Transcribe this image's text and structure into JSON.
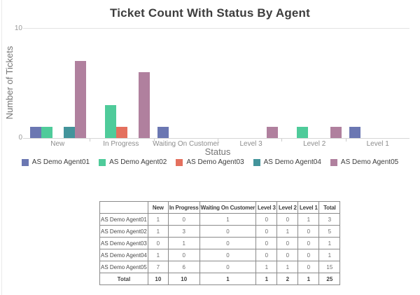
{
  "title": "Ticket Count With Status By Agent",
  "chart_data": {
    "type": "bar",
    "title": "Ticket Count With Status By Agent",
    "xlabel": "Status",
    "ylabel": "Number of Tickets",
    "ylim": [
      0,
      10
    ],
    "yticks": [
      0,
      10
    ],
    "grid": "horizontal-top-and-baseline-only",
    "legend_position": "bottom",
    "categories": [
      "New",
      "In Progress",
      "Waiting On Customer",
      "Level 3",
      "Level 2",
      "Level 1"
    ],
    "series": [
      {
        "name": "AS Demo Agent01",
        "color": "#6b77b2",
        "values": [
          1,
          0,
          1,
          0,
          0,
          1
        ]
      },
      {
        "name": "AS Demo Agent02",
        "color": "#4fcb9a",
        "values": [
          1,
          3,
          0,
          0,
          1,
          0
        ]
      },
      {
        "name": "AS Demo Agent03",
        "color": "#e4705e",
        "values": [
          0,
          1,
          0,
          0,
          0,
          0
        ]
      },
      {
        "name": "AS Demo Agent04",
        "color": "#43949b",
        "values": [
          1,
          0,
          0,
          0,
          0,
          0
        ]
      },
      {
        "name": "AS Demo Agent05",
        "color": "#b0809e",
        "values": [
          7,
          6,
          0,
          1,
          1,
          0
        ]
      }
    ]
  },
  "table": {
    "columns": [
      "",
      "New",
      "In Progress",
      "Waiting On Customer",
      "Level 3",
      "Level 2",
      "Level 1",
      "Total"
    ],
    "rows": [
      {
        "label": "AS Demo Agent01",
        "values": [
          1,
          0,
          1,
          0,
          0,
          1,
          3
        ],
        "bold": false
      },
      {
        "label": "AS Demo Agent02",
        "values": [
          1,
          3,
          0,
          0,
          1,
          0,
          5
        ],
        "bold": false
      },
      {
        "label": "AS Demo Agent03",
        "values": [
          0,
          1,
          0,
          0,
          0,
          0,
          1
        ],
        "bold": false
      },
      {
        "label": "AS Demo Agent04",
        "values": [
          1,
          0,
          0,
          0,
          0,
          0,
          1
        ],
        "bold": false
      },
      {
        "label": "AS Demo Agent05",
        "values": [
          7,
          6,
          0,
          1,
          1,
          0,
          15
        ],
        "bold": false
      },
      {
        "label": "Total",
        "values": [
          10,
          10,
          1,
          1,
          2,
          1,
          25
        ],
        "bold": true
      }
    ]
  }
}
